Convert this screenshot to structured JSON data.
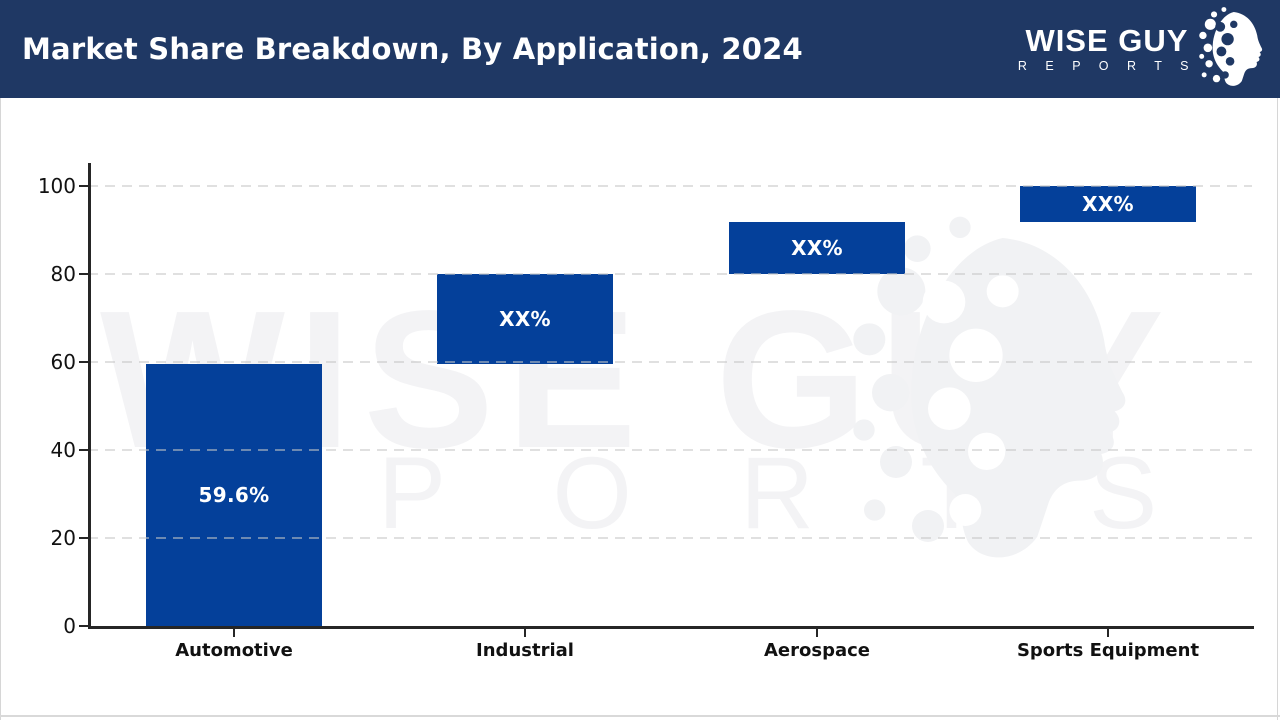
{
  "header": {
    "title": "Market Share Breakdown, By Application, 2024",
    "logo": {
      "line1": "WISE GUY",
      "line2": "R E P O R T S"
    }
  },
  "watermark": {
    "line1": "WISE GUY",
    "line2": "P O R T S"
  },
  "colors": {
    "header_bg": "#1f3864",
    "bar": "#04409a",
    "bar_label": "#ffffff",
    "watermark": "#f3f3f5",
    "grid": "#dcdcdc",
    "axis": "#262626"
  },
  "chart_data": {
    "type": "bar",
    "subtype": "waterfall",
    "title": "Market Share Breakdown, By Application, 2024",
    "xlabel": "",
    "ylabel": "",
    "categories": [
      "Automotive",
      "Industrial",
      "Aerospace",
      "Sports Equipment"
    ],
    "segments": [
      {
        "category": "Automotive",
        "start": 0,
        "end": 59.6,
        "label": "59.6%"
      },
      {
        "category": "Industrial",
        "start": 59.6,
        "end": 80,
        "label": "XX%"
      },
      {
        "category": "Aerospace",
        "start": 80,
        "end": 91.8,
        "label": "XX%"
      },
      {
        "category": "Sports Equipment",
        "start": 91.8,
        "end": 100,
        "label": "XX%"
      }
    ],
    "ylim": [
      0,
      100
    ],
    "yticks": [
      0,
      20,
      40,
      60,
      80,
      100
    ],
    "grid": "horizontal-dashed",
    "legend": "none"
  }
}
